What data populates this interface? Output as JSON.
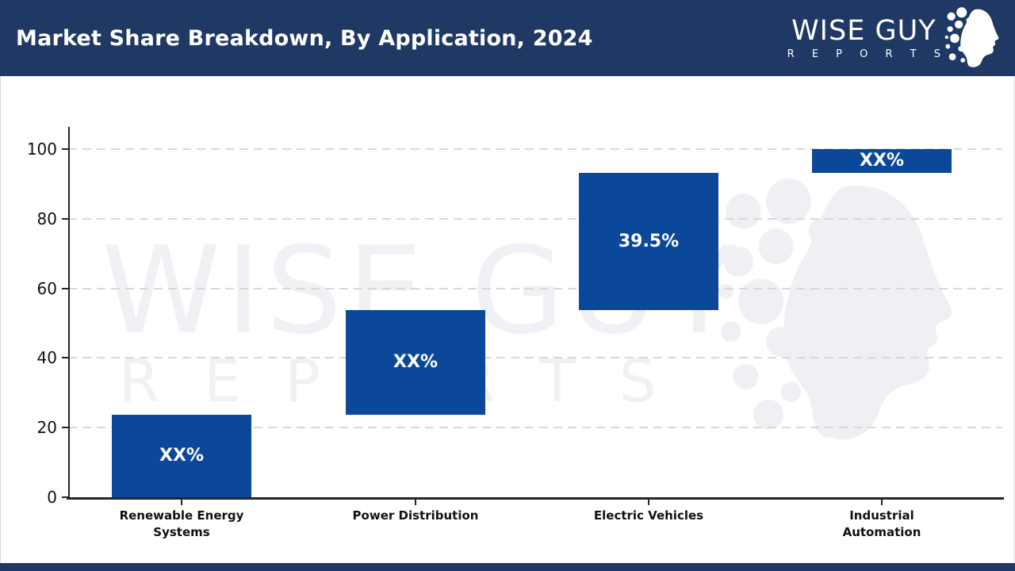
{
  "header": {
    "title": "Market Share Breakdown, By Application, 2024",
    "logo": {
      "name": "WISE GUY",
      "sub": "R E P O R T S"
    }
  },
  "watermark": {
    "line1": "WISE GUY",
    "line2": "R E P O R T S"
  },
  "colors": {
    "header_bg": "#1f3864",
    "footer_bg": "#1f3864",
    "bar": "#0b4899",
    "bar_label": "#ffffff",
    "gridline": "#d8d8d8",
    "axis": "#262626",
    "tick_label": "#111111",
    "watermark": "#f0f1f4"
  },
  "icons": {
    "logo_head": "wiseguy-dotted-head-icon",
    "plot_watermark": "wiseguy-dotted-head-watermark"
  },
  "chart_data": {
    "type": "bar",
    "subtype": "waterfall",
    "title": "Market Share Breakdown, By Application, 2024",
    "xlabel": "",
    "ylabel": "",
    "categories": [
      [
        "Renewable Energy",
        "Systems"
      ],
      [
        "Power Distribution"
      ],
      [
        "Electric Vehicles"
      ],
      [
        "Industrial",
        "Automation"
      ]
    ],
    "segments": [
      {
        "category": "Renewable Energy Systems",
        "start": 0,
        "end": 23.8,
        "value": 23.8,
        "label": "XX%"
      },
      {
        "category": "Power Distribution",
        "start": 23.8,
        "end": 53.7,
        "value": 29.9,
        "label": "XX%"
      },
      {
        "category": "Electric Vehicles",
        "start": 53.7,
        "end": 93.2,
        "value": 39.5,
        "label": "39.5%"
      },
      {
        "category": "Industrial Automation",
        "start": 93.2,
        "end": 100,
        "value": 6.8,
        "label": "XX%"
      }
    ],
    "yticks": [
      0,
      20,
      40,
      60,
      80,
      100
    ],
    "ylim": [
      0,
      106
    ],
    "grid": "dashed-horizontal",
    "legend": "none"
  }
}
